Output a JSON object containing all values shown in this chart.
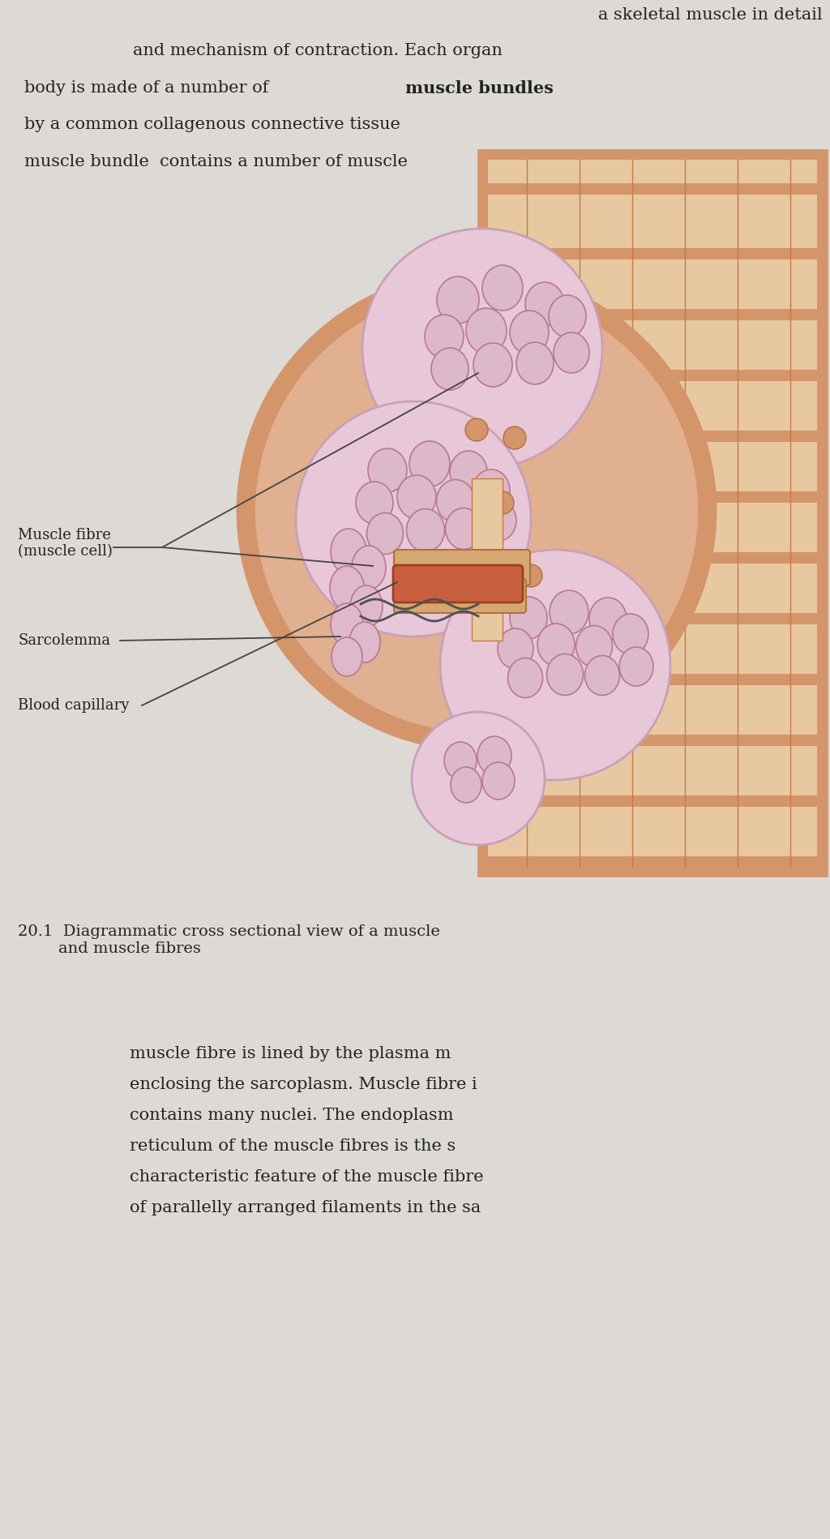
{
  "page_bg": "#ddd9d5",
  "c_outer": "#d4956a",
  "c_inner_bg": "#e8c090",
  "c_long_bg": "#e8c8a0",
  "c_long_stripe": "#c87840",
  "c_bundle_fill": "#e8c8d8",
  "c_bundle_border": "#c8a0b8",
  "c_cell_fill": "#ddb8c8",
  "c_cell_border": "#b87890",
  "c_connective_dot": "#c87840",
  "c_fibre_tube": "#d4956a",
  "c_blood_cap": "#c86040",
  "c_nerve": "#505050",
  "c_line": "#444444",
  "c_text": "#222222",
  "top_lines": [
    {
      "t": "a skeletal muscle in detail",
      "bold": false
    },
    {
      "t": "and mechanism of contraction. Each organ",
      "bold": false
    },
    {
      "t": "body is made of a number of ",
      "bold": false,
      "bold_suffix": "muscle bundles"
    },
    {
      "t": "by a common collagenous connective tissue",
      "bold": false
    },
    {
      "t": "muscle bundle  contains a number of muscle",
      "bold": false
    }
  ],
  "caption": "20.1  Diagrammatic cross sectional view of a muscle\n        and muscle fibres",
  "body_lines": [
    "muscle fibre is lined by the plasma m",
    "enclosing the sarcoplasm. Muscle fibre i",
    "contains many nuclei. The endoplasm",
    "reticulum of the muscle fibres is the s",
    "characteristic feature of the muscle fibre",
    "of parallelly arranged filaments in the sa"
  ]
}
